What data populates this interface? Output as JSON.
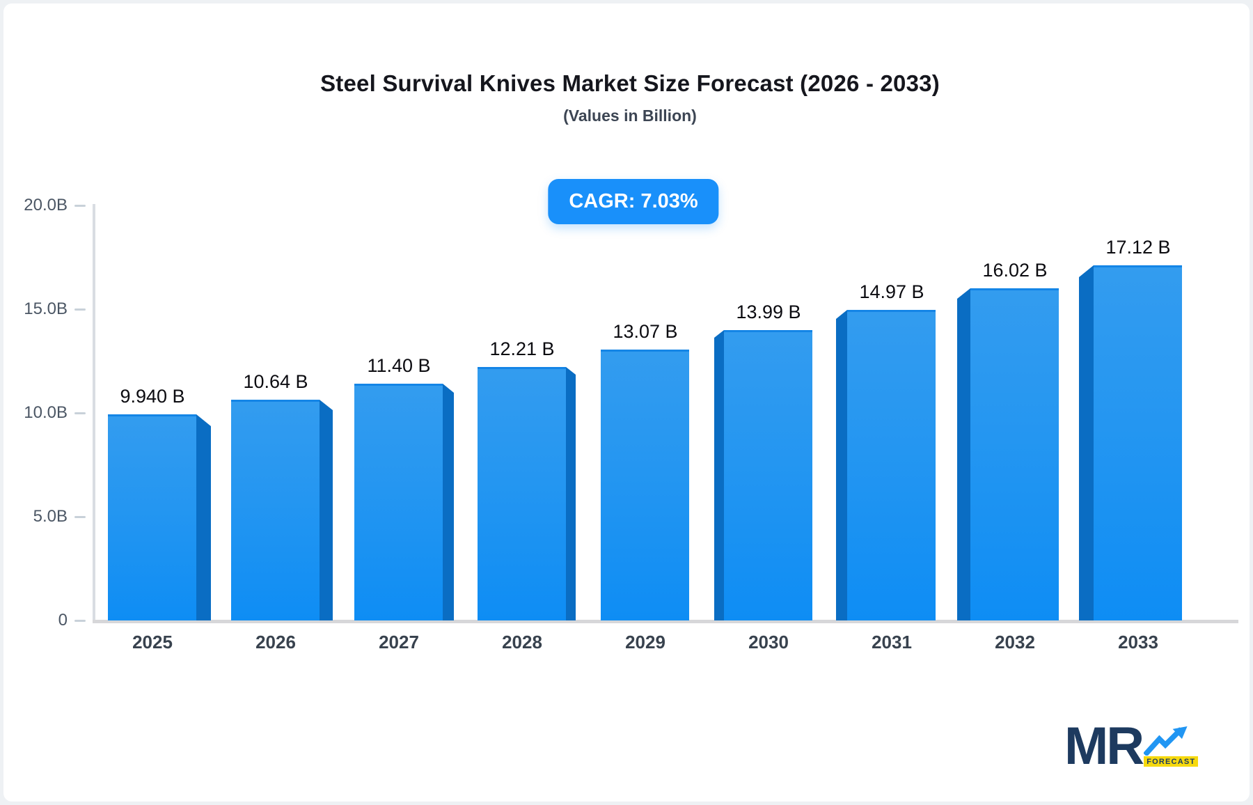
{
  "header": {
    "title": "Steel Survival Knives Market Size Forecast (2026 - 2033)",
    "subtitle": "(Values in Billion)",
    "cagr_label": "CAGR: 7.03%"
  },
  "chart_data": {
    "type": "bar",
    "title": "Steel Survival Knives Market Size Forecast (2026 - 2033)",
    "subtitle": "(Values in Billion)",
    "categories": [
      "2025",
      "2026",
      "2027",
      "2028",
      "2029",
      "2030",
      "2031",
      "2032",
      "2033"
    ],
    "values": [
      9.94,
      10.64,
      11.4,
      12.21,
      13.07,
      13.99,
      14.97,
      16.02,
      17.12
    ],
    "value_labels": [
      "9.940 B",
      "10.64 B",
      "11.40 B",
      "12.21 B",
      "13.07 B",
      "13.99 B",
      "14.97 B",
      "16.02 B",
      "17.12 B"
    ],
    "xlabel": "",
    "ylabel": "",
    "ylim": [
      0,
      20
    ],
    "yticks": [
      {
        "value": 20,
        "label": "20.0B"
      },
      {
        "value": 15,
        "label": "15.0B"
      },
      {
        "value": 10,
        "label": "10.0B"
      },
      {
        "value": 5,
        "label": "5.0B"
      },
      {
        "value": 0,
        "label": "0"
      }
    ],
    "grid": false,
    "legend": "none",
    "colors": {
      "bar_face_top": "#339cef",
      "bar_face_bottom": "#0e8df4",
      "bar_side": "#0a6dc3",
      "axis_line": "#d9dde2",
      "baseline": "#d7d7d9",
      "tick_label": "#4b5664",
      "category_label": "#38424e",
      "value_label": "#0b0b10",
      "badge_background": "#1990fa",
      "badge_text": "#ffffff"
    }
  },
  "logo": {
    "mr_text": "MR",
    "forecast_text": "FORECAST",
    "colors": {
      "navy": "#1d3a5f",
      "arrow_blue": "#2196f3",
      "yellow": "#f6d90e"
    }
  }
}
